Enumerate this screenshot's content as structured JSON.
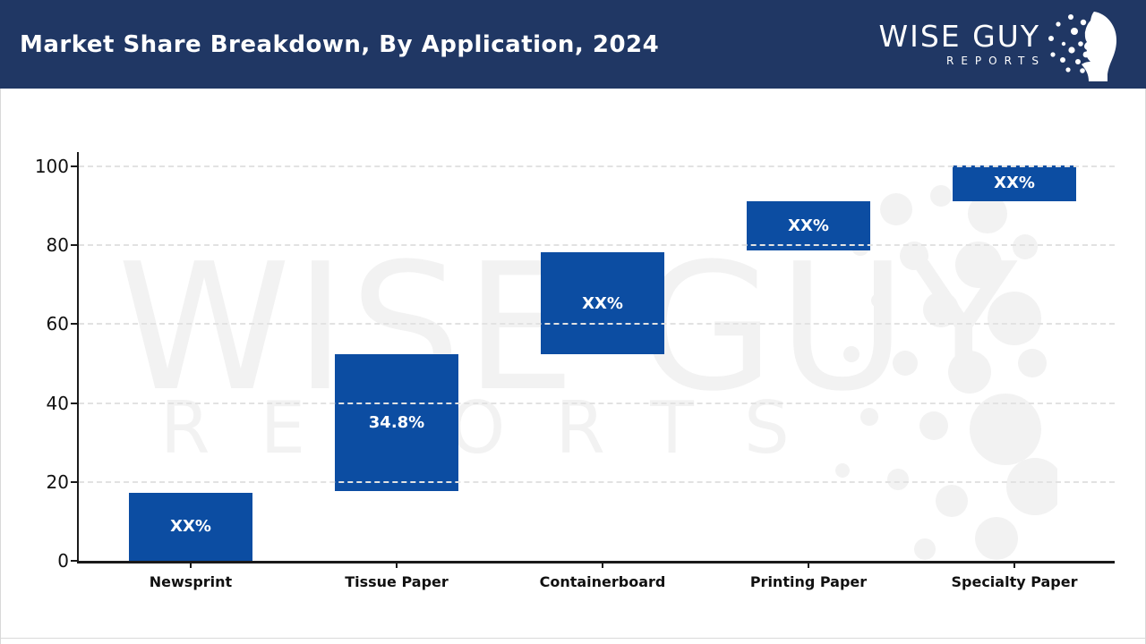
{
  "header": {
    "title": "Market Share Breakdown, By Application, 2024",
    "bg_color": "#203764",
    "logo": {
      "line1": "WISE GUY",
      "line2": "REPORTS"
    }
  },
  "watermark": {
    "line1": "WISE GUY",
    "line2": "REPORTS"
  },
  "chart_data": {
    "type": "bar",
    "subtype": "floating-waterfall",
    "title": "Market Share Breakdown, By Application, 2024",
    "categories": [
      "Newsprint",
      "Tissue Paper",
      "Containerboard",
      "Printing Paper",
      "Specialty Paper"
    ],
    "segments": [
      {
        "category": "Newsprint",
        "start": 0,
        "end": 17.3,
        "label": "XX%"
      },
      {
        "category": "Tissue Paper",
        "start": 17.6,
        "end": 52.4,
        "label": "34.8%"
      },
      {
        "category": "Containerboard",
        "start": 52.3,
        "end": 78.3,
        "label": "XX%"
      },
      {
        "category": "Printing Paper",
        "start": 78.7,
        "end": 91.2,
        "label": "XX%"
      },
      {
        "category": "Specialty Paper",
        "start": 91.2,
        "end": 100.2,
        "label": "XX%"
      }
    ],
    "yticks": [
      0,
      20,
      40,
      60,
      80,
      100
    ],
    "ylim": [
      0,
      103.5
    ],
    "xlabel": "",
    "ylabel": "",
    "grid": "horizontal-dashed",
    "legend": "none",
    "bar_color": "#0c4da2",
    "bar_label_color": "#ffffff",
    "axis_color": "#1a1a1a"
  }
}
